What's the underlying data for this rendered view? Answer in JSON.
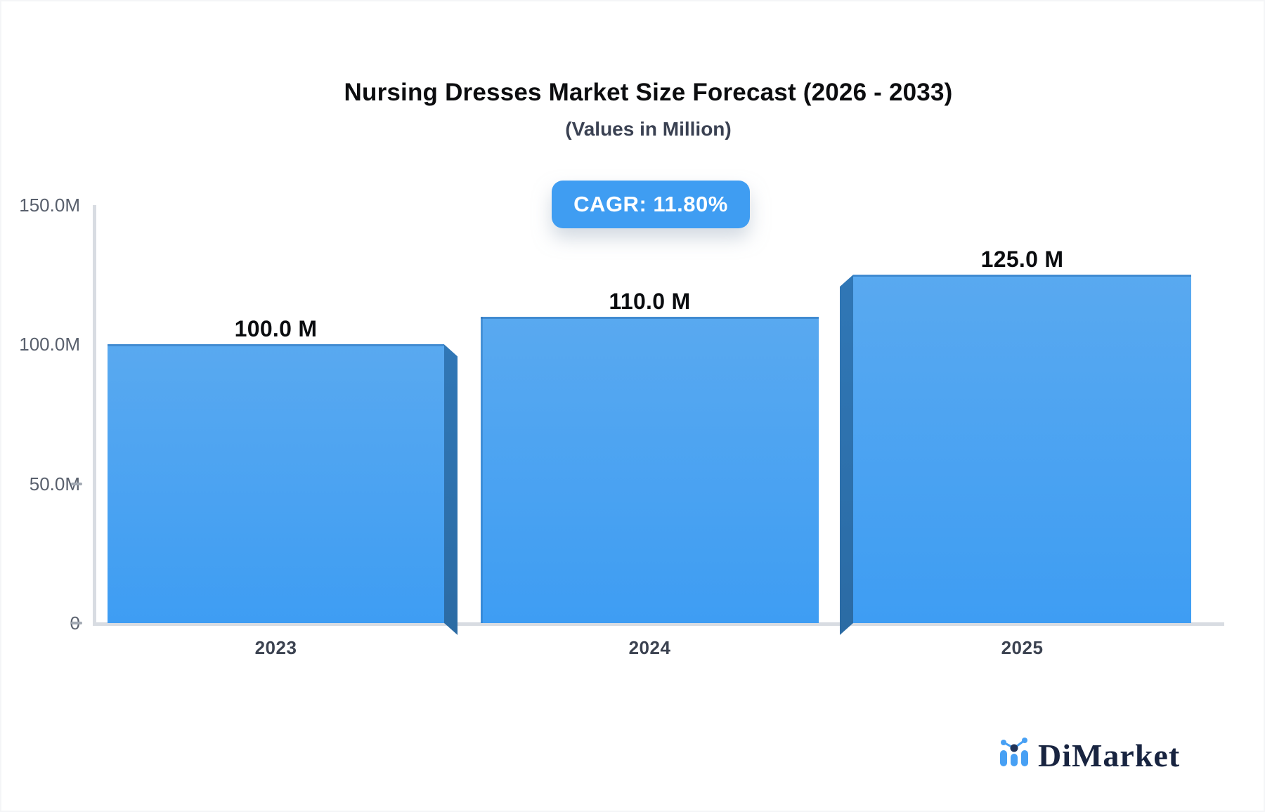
{
  "chart_data": {
    "type": "bar",
    "title": "Nursing Dresses Market Size Forecast (2026 - 2033)",
    "subtitle": "(Values in Million)",
    "categories": [
      "2023",
      "2024",
      "2025"
    ],
    "values": [
      100,
      110,
      125
    ],
    "bar_labels": [
      "100.0 M",
      "110.0 M",
      "125.0 M"
    ],
    "unit": "Million",
    "ylim": [
      0,
      150
    ],
    "yticks": [
      {
        "label": "150.0M",
        "value": 150,
        "dash": false
      },
      {
        "label": "100.0M",
        "value": 100,
        "dash": false
      },
      {
        "label": "50.0M",
        "value": 50,
        "dash": true
      },
      {
        "label": "0",
        "value": 0,
        "dash": true
      }
    ],
    "grid": false,
    "legend": false,
    "annotations": [
      {
        "text": "CAGR: 11.80%"
      }
    ]
  },
  "branding": {
    "logo_text": "DiMarket"
  },
  "colors": {
    "accent": "#3f9df2",
    "bar_top": "#59a9f0",
    "bar_bottom": "#3e9df3",
    "bar_side": "#2d70ac",
    "axis": "#d8dce2",
    "logo_blue": "#47a0f4",
    "logo_navy": "#203358"
  }
}
